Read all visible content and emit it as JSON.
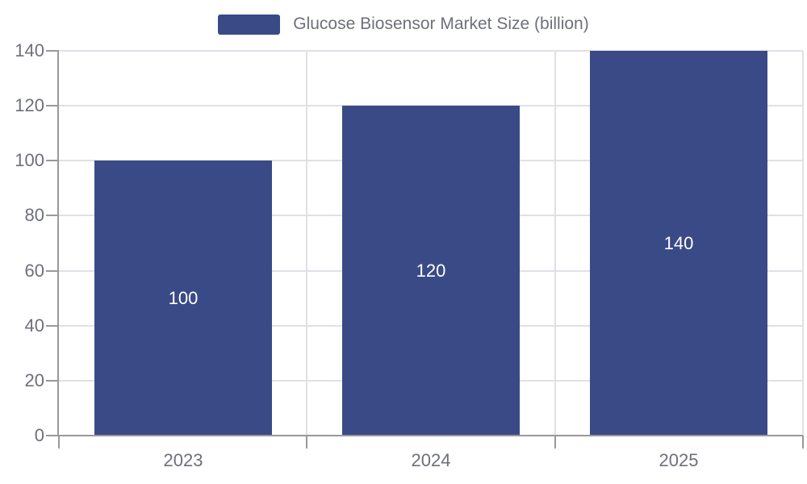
{
  "chart_data": {
    "type": "bar",
    "title": "Glucose Biosensor Market Size (billion)",
    "legend": {
      "position": "top-center",
      "entries": [
        "Glucose Biosensor Market Size (billion)"
      ]
    },
    "categories": [
      "2023",
      "2024",
      "2025"
    ],
    "series": [
      {
        "name": "Glucose Biosensor Market Size (billion)",
        "values": [
          100,
          120,
          140
        ]
      }
    ],
    "bar_labels": [
      "100",
      "120",
      "140"
    ],
    "xlabel": "",
    "ylabel": "",
    "ylim": [
      0,
      140
    ],
    "yticks": [
      0,
      20,
      40,
      60,
      80,
      100,
      120,
      140
    ],
    "grid": true,
    "colors": {
      "bar": "#3a4a87",
      "gridline": "#e0e0e6",
      "axis_line": "#999999",
      "axis_label": "#6e7079",
      "legend_text": "#6e7079",
      "bar_label": "#ffffff",
      "background": "#ffffff"
    }
  }
}
